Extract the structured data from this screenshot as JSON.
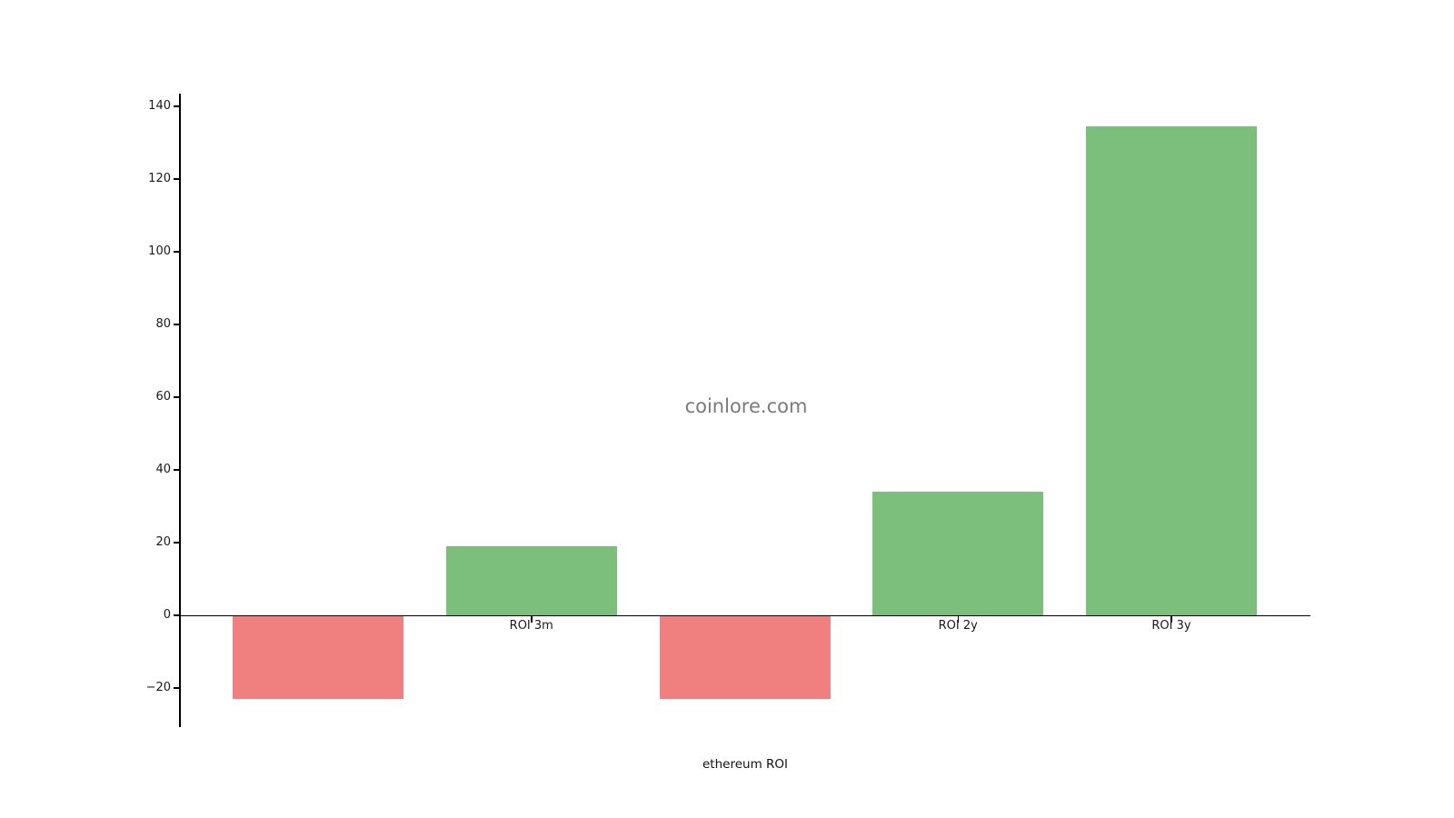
{
  "page": {
    "background": "#ffffff"
  },
  "chart_data": {
    "type": "bar",
    "title": "",
    "xlabel": "ethereum ROI",
    "ylabel": "",
    "watermark": "coinlore.com",
    "categories": [
      "",
      "ROI 3m",
      "",
      "ROI 2y",
      "ROI 3y"
    ],
    "values": [
      -23,
      19,
      -23,
      34,
      134.5
    ],
    "bar_colors": [
      "#f08080",
      "#7cbf7c",
      "#f08080",
      "#7cbf7c",
      "#7cbf7c"
    ],
    "colors": {
      "positive": "#7cbf7c",
      "negative": "#f08080",
      "axis": "#000000",
      "tick_label": "#1a1a1a",
      "watermark": "#7a7a7a"
    },
    "yticks": [
      {
        "value": -20,
        "label": "−20"
      },
      {
        "value": 0,
        "label": "0"
      },
      {
        "value": 20,
        "label": "20"
      },
      {
        "value": 40,
        "label": "40"
      },
      {
        "value": 60,
        "label": "60"
      },
      {
        "value": 80,
        "label": "80"
      },
      {
        "value": 100,
        "label": "100"
      },
      {
        "value": 120,
        "label": "120"
      },
      {
        "value": 140,
        "label": "140"
      }
    ],
    "ylim": [
      -31,
      143
    ],
    "grid": false,
    "legend_position": "none"
  }
}
